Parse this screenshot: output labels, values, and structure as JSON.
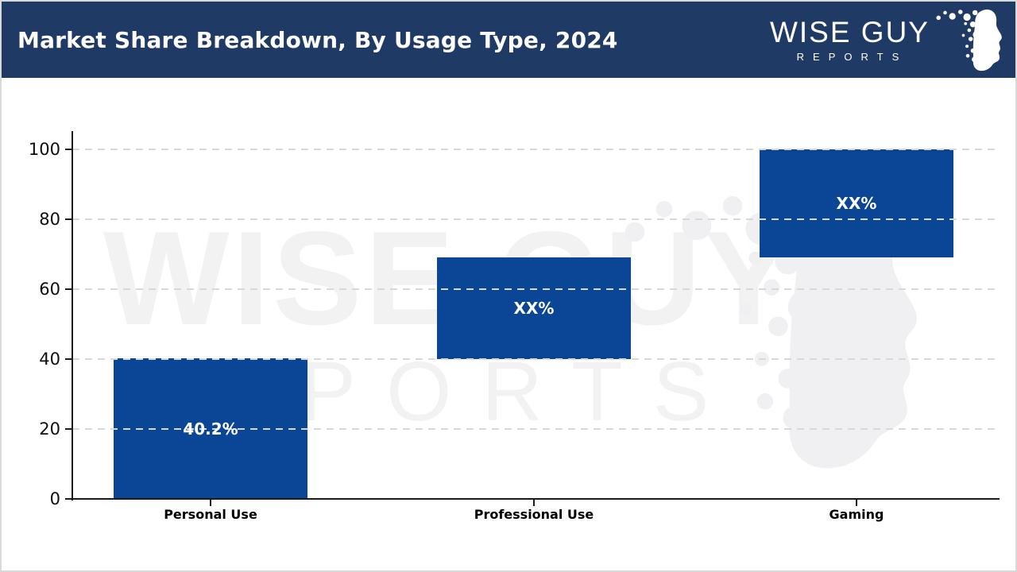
{
  "header": {
    "title": "Market Share Breakdown, By Usage Type, 2024",
    "bg_color": "#203a66",
    "logo": {
      "line1": "WISE GUY",
      "line2": "REPORTS"
    }
  },
  "watermark": {
    "line1": "WISE GUY",
    "line2": "REPORTS"
  },
  "chart_data": {
    "type": "bar",
    "variant": "floating-segment-waterfall",
    "title": "Market Share Breakdown, By Usage Type, 2024",
    "categories": [
      "Personal Use",
      "Professional Use",
      "Gaming"
    ],
    "segments": [
      {
        "category": "Personal Use",
        "start": 0,
        "end": 40.2,
        "label": "40.2%"
      },
      {
        "category": "Professional Use",
        "start": 40,
        "end": 69,
        "label": "XX%"
      },
      {
        "category": "Gaming",
        "start": 69,
        "end": 100,
        "label": "XX%"
      }
    ],
    "yticks": [
      0,
      20,
      40,
      60,
      80,
      100
    ],
    "ylim": [
      0,
      105
    ],
    "grid": {
      "horizontal_dashed": true,
      "drawn_above_bars": true,
      "color": "#d9d9d9"
    },
    "bar_color": "#0b4596",
    "bar_label_color": "#ffffff",
    "axis_color": "#1a1a1a",
    "legend": "none"
  }
}
